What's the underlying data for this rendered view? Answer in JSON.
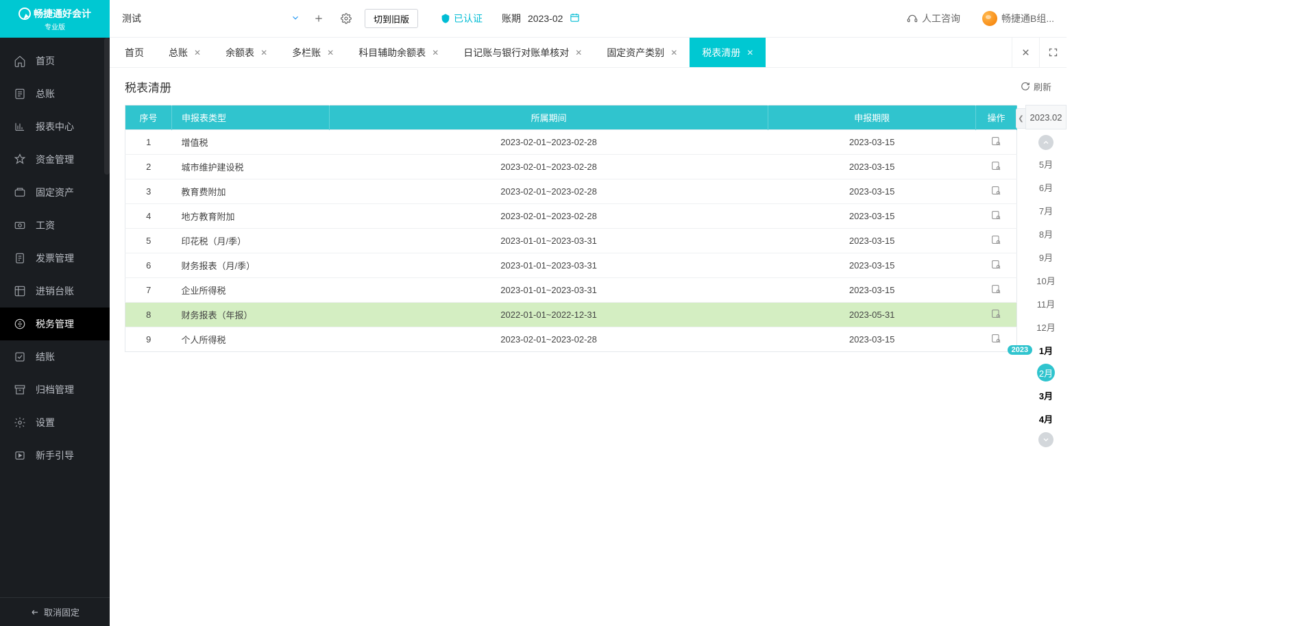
{
  "brand": {
    "name": "畅捷通好会计",
    "edition": "专业版"
  },
  "sidebar": {
    "items": [
      {
        "label": "首页",
        "icon": "home"
      },
      {
        "label": "总账",
        "icon": "ledger"
      },
      {
        "label": "报表中心",
        "icon": "chart"
      },
      {
        "label": "资金管理",
        "icon": "fund"
      },
      {
        "label": "固定资产",
        "icon": "asset"
      },
      {
        "label": "工资",
        "icon": "payroll"
      },
      {
        "label": "发票管理",
        "icon": "invoice"
      },
      {
        "label": "进销台账",
        "icon": "stock"
      },
      {
        "label": "税务管理",
        "icon": "tax",
        "active": true
      },
      {
        "label": "结账",
        "icon": "close"
      },
      {
        "label": "归档管理",
        "icon": "archive"
      },
      {
        "label": "设置",
        "icon": "settings"
      },
      {
        "label": "新手引导",
        "icon": "guide"
      }
    ],
    "footer": "取消固定"
  },
  "header": {
    "company": "测试",
    "old_version_btn": "切到旧版",
    "verified": "已认证",
    "period_label": "账期",
    "period_value": "2023-02",
    "support": "人工咨询",
    "user": "畅捷通B组..."
  },
  "tabs": {
    "items": [
      {
        "label": "首页",
        "closable": false
      },
      {
        "label": "总账",
        "closable": true
      },
      {
        "label": "余额表",
        "closable": true
      },
      {
        "label": "多栏账",
        "closable": true
      },
      {
        "label": "科目辅助余额表",
        "closable": true
      },
      {
        "label": "日记账与银行对账单核对",
        "closable": true
      },
      {
        "label": "固定资产类别",
        "closable": true
      },
      {
        "label": "税表清册",
        "closable": true,
        "active": true
      }
    ]
  },
  "page": {
    "title": "税表清册",
    "refresh": "刷新"
  },
  "table": {
    "columns": {
      "seq": "序号",
      "type": "申报表类型",
      "period": "所属期间",
      "deadline": "申报期限",
      "op": "操作"
    },
    "rows": [
      {
        "seq": "1",
        "type": "增值税",
        "period": "2023-02-01~2023-02-28",
        "deadline": "2023-03-15"
      },
      {
        "seq": "2",
        "type": "城市维护建设税",
        "period": "2023-02-01~2023-02-28",
        "deadline": "2023-03-15"
      },
      {
        "seq": "3",
        "type": "教育费附加",
        "period": "2023-02-01~2023-02-28",
        "deadline": "2023-03-15"
      },
      {
        "seq": "4",
        "type": "地方教育附加",
        "period": "2023-02-01~2023-02-28",
        "deadline": "2023-03-15"
      },
      {
        "seq": "5",
        "type": "印花税（月/季）",
        "period": "2023-01-01~2023-03-31",
        "deadline": "2023-03-15"
      },
      {
        "seq": "6",
        "type": "财务报表（月/季）",
        "period": "2023-01-01~2023-03-31",
        "deadline": "2023-03-15"
      },
      {
        "seq": "7",
        "type": "企业所得税",
        "period": "2023-01-01~2023-03-31",
        "deadline": "2023-03-15"
      },
      {
        "seq": "8",
        "type": "财务报表（年报）",
        "period": "2022-01-01~2022-12-31",
        "deadline": "2023-05-31",
        "highlight": true
      },
      {
        "seq": "9",
        "type": "个人所得税",
        "period": "2023-02-01~2023-02-28",
        "deadline": "2023-03-15"
      }
    ]
  },
  "month_panel": {
    "year_label": "2023.02",
    "year_chip": "2023",
    "months": [
      {
        "label": "5月"
      },
      {
        "label": "6月"
      },
      {
        "label": "7月"
      },
      {
        "label": "8月"
      },
      {
        "label": "9月"
      },
      {
        "label": "10月"
      },
      {
        "label": "11月"
      },
      {
        "label": "12月"
      },
      {
        "label": "1月",
        "bold": true,
        "year_chip": true
      },
      {
        "label": "2月",
        "selected": true
      },
      {
        "label": "3月",
        "bold": true
      },
      {
        "label": "4月",
        "bold": true
      }
    ]
  },
  "colors": {
    "accent": "#00c8d2",
    "table_header": "#30c4ce",
    "highlight_row": "#d4eec2",
    "sidebar_bg": "#1a1d21"
  }
}
